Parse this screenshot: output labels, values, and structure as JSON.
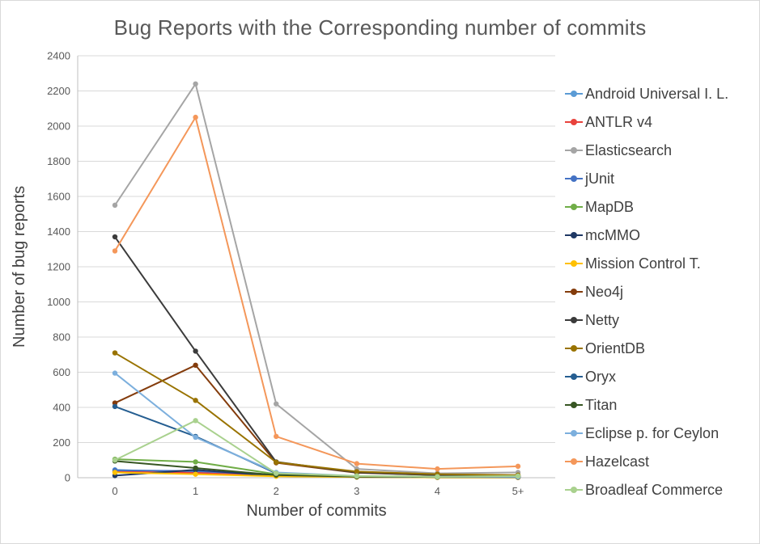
{
  "title": "Bug Reports with the Corresponding number of commits",
  "xlabel": "Number of commits",
  "ylabel": "Number of bug reports",
  "colors": {
    "title_text": "#595959",
    "axis_text": "#404040",
    "tick_text": "#595959",
    "gridline": "#d9d9d9",
    "axis_line": "#bfbfbf",
    "frame_border": "#d9d9d9",
    "background": "#ffffff"
  },
  "chart_data": {
    "type": "line",
    "title": "Bug Reports with the Corresponding number of commits",
    "xlabel": "Number of commits",
    "ylabel": "Number of bug reports",
    "categories": [
      "0",
      "1",
      "2",
      "3",
      "4",
      "5+"
    ],
    "y_ticks": [
      0,
      200,
      400,
      600,
      800,
      1000,
      1200,
      1400,
      1600,
      1800,
      2000,
      2200,
      2400
    ],
    "ylim": [
      0,
      2400
    ],
    "grid": true,
    "legend_position": "right",
    "marker": "circle",
    "series": [
      {
        "name": "Android Universal I. L.",
        "color": "#5B9BD5",
        "values": [
          45,
          30,
          12,
          5,
          3,
          3
        ]
      },
      {
        "name": "ANTLR v4",
        "color": "#E8423C",
        "values": [
          35,
          28,
          10,
          5,
          3,
          2
        ]
      },
      {
        "name": "Elasticsearch",
        "color": "#A5A5A5",
        "values": [
          1550,
          2240,
          420,
          50,
          25,
          30
        ]
      },
      {
        "name": "jUnit",
        "color": "#4472C4",
        "values": [
          42,
          38,
          15,
          6,
          4,
          3
        ]
      },
      {
        "name": "MapDB",
        "color": "#70AD47",
        "values": [
          105,
          90,
          20,
          8,
          5,
          5
        ]
      },
      {
        "name": "mcMMO",
        "color": "#1F3864",
        "values": [
          12,
          45,
          10,
          4,
          2,
          2
        ]
      },
      {
        "name": "Mission Control T.",
        "color": "#FFC000",
        "values": [
          30,
          20,
          8,
          4,
          2,
          2
        ]
      },
      {
        "name": "Neo4j",
        "color": "#843C0C",
        "values": [
          425,
          640,
          85,
          28,
          15,
          12
        ]
      },
      {
        "name": "Netty",
        "color": "#3B3B3B",
        "values": [
          1370,
          720,
          90,
          30,
          15,
          10
        ]
      },
      {
        "name": "OrientDB",
        "color": "#997300",
        "values": [
          710,
          440,
          88,
          35,
          20,
          15
        ]
      },
      {
        "name": "Oryx",
        "color": "#255E91",
        "values": [
          405,
          235,
          25,
          8,
          5,
          4
        ]
      },
      {
        "name": "Titan",
        "color": "#375623",
        "values": [
          95,
          55,
          15,
          6,
          4,
          4
        ]
      },
      {
        "name": "Eclipse p. for Ceylon",
        "color": "#7CAFDD",
        "values": [
          595,
          230,
          30,
          10,
          5,
          5
        ]
      },
      {
        "name": "Hazelcast",
        "color": "#F4975A",
        "values": [
          1290,
          2050,
          235,
          80,
          50,
          65
        ]
      },
      {
        "name": "Broadleaf Commerce",
        "color": "#A9D18E",
        "values": [
          100,
          325,
          25,
          10,
          6,
          10
        ]
      }
    ]
  }
}
